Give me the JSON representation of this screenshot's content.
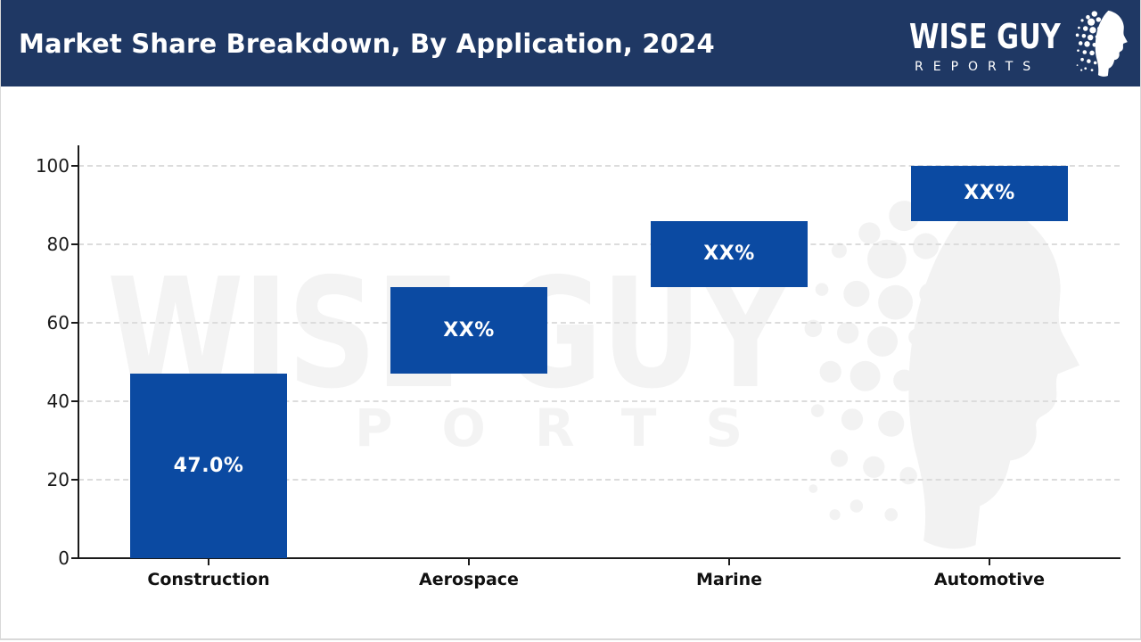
{
  "header": {
    "title": "Market Share Breakdown, By Application, 2024",
    "logo": {
      "line1": "WISE GUY",
      "line2": "REPORTS"
    }
  },
  "watermark": {
    "line1": "WISE GUY",
    "line2": "PORTS"
  },
  "chart_data": {
    "type": "bar",
    "variant": "waterfall",
    "title": "Market Share Breakdown, By Application, 2024",
    "categories": [
      "Construction",
      "Aerospace",
      "Marine",
      "Automotive"
    ],
    "segments": [
      {
        "category": "Construction",
        "start": 0,
        "end": 47,
        "label": "47.0%"
      },
      {
        "category": "Aerospace",
        "start": 47,
        "end": 69,
        "label": "XX%"
      },
      {
        "category": "Marine",
        "start": 69,
        "end": 86,
        "label": "XX%"
      },
      {
        "category": "Automotive",
        "start": 86,
        "end": 100,
        "label": "XX%"
      }
    ],
    "xlabel": "",
    "ylabel": "",
    "ylim": [
      0,
      105
    ],
    "yticks": [
      0,
      20,
      40,
      60,
      80,
      100
    ],
    "grid": {
      "horizontal": true,
      "style": "dashed",
      "color": "#dcdcdc"
    },
    "legend": "none",
    "colors": {
      "header_bg": "#1f3864",
      "bar": "#0b4aa2",
      "bar_label": "#ffffff",
      "axis": "#1a1a1a",
      "grid": "#dcdcdc",
      "watermark": "#f3f3f3"
    }
  }
}
